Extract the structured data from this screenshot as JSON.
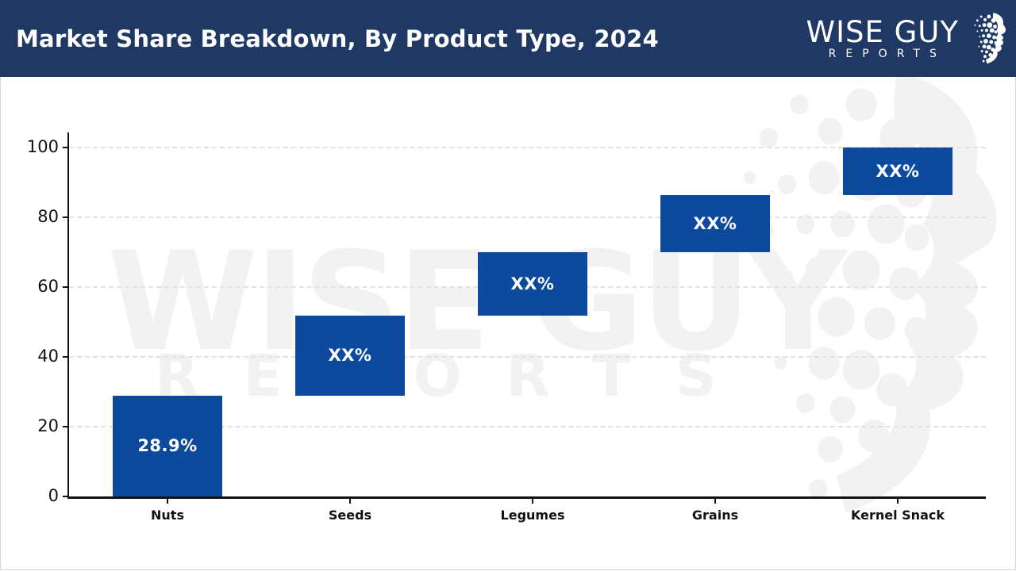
{
  "header": {
    "title": "Market Share Breakdown, By Product Type, 2024",
    "logo": {
      "line1": "WISE GUY",
      "line2": "REPORTS"
    }
  },
  "watermark": {
    "line1": "WISE GUY",
    "line2": "REPORTS"
  },
  "colors": {
    "header_background": "#1f3864",
    "bar_fill": "#0d4a9e",
    "bar_label_text": "#ffffff",
    "axis_text": "#111111",
    "gridline": "#e2e2e2",
    "watermark_gray": "#f2f2f2",
    "frame_border": "#d5d5d5"
  },
  "chart_data": {
    "type": "bar",
    "subtype": "waterfall",
    "title": "Market Share Breakdown, By Product Type, 2024",
    "xlabel": "",
    "ylabel": "",
    "categories": [
      "Nuts",
      "Seeds",
      "Legumes",
      "Grains",
      "Kernel Snack"
    ],
    "segments": [
      {
        "category": "Nuts",
        "start": 0,
        "end": 28.9,
        "label": "28.9%"
      },
      {
        "category": "Seeds",
        "start": 28.9,
        "end": 51.8,
        "label": "XX%"
      },
      {
        "category": "Legumes",
        "start": 51.8,
        "end": 70.0,
        "label": "XX%"
      },
      {
        "category": "Grains",
        "start": 70.0,
        "end": 86.4,
        "label": "XX%"
      },
      {
        "category": "Kernel Snack",
        "start": 86.4,
        "end": 100.0,
        "label": "XX%"
      }
    ],
    "yticks": [
      0,
      20,
      40,
      60,
      80,
      100
    ],
    "ylim": [
      0,
      104
    ],
    "bar_color": "#0d4a9e",
    "grid": "horizontal-dashed",
    "legend": "none"
  }
}
